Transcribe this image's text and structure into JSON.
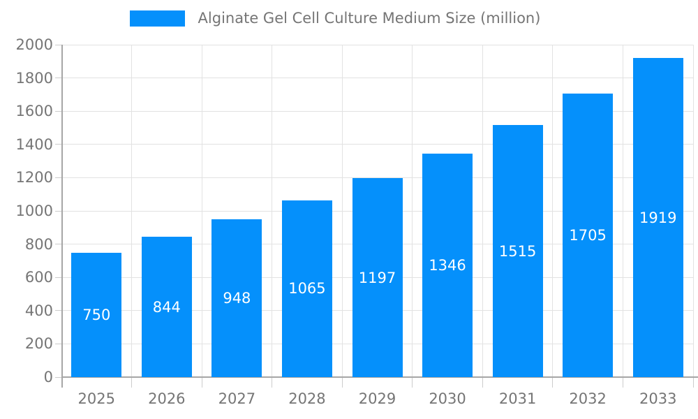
{
  "legend": {
    "label": "Alginate Gel Cell Culture Medium Size (million)"
  },
  "chart_data": {
    "type": "bar",
    "title": "Alginate Gel Cell Culture Medium Size (million)",
    "legend_entries": [
      "Alginate Gel Cell Culture Medium Size (million)"
    ],
    "legend_position": "top",
    "categories": [
      "2025",
      "2026",
      "2027",
      "2028",
      "2029",
      "2030",
      "2031",
      "2032",
      "2033"
    ],
    "values": [
      750,
      844,
      948,
      1065,
      1197,
      1346,
      1515,
      1705,
      1919
    ],
    "xlabel": "",
    "ylabel": "",
    "ylim": [
      0,
      2000
    ],
    "ytick_step": 200,
    "yticks": [
      0,
      200,
      400,
      600,
      800,
      1000,
      1200,
      1400,
      1600,
      1800,
      2000
    ],
    "grid": true,
    "value_labels_inside_bars": true,
    "colors": {
      "bar": "#0590fb",
      "bar_value_text": "#ffffff",
      "axis_text": "#757575",
      "grid_line": "#e2e2e2",
      "axis_line": "#a6a6a6",
      "tick_line": "#cccccc",
      "background": "#ffffff"
    }
  }
}
